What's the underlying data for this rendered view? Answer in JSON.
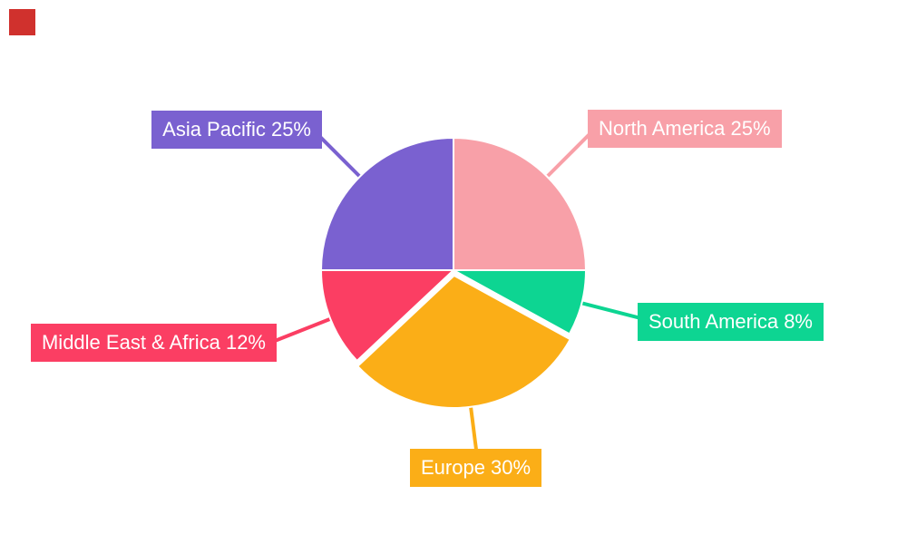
{
  "page": {
    "background_color": "#ffffff"
  },
  "marker": {
    "color": "#D0312D"
  },
  "chart_data": {
    "type": "pie",
    "title": "",
    "unit": "%",
    "direction": "clockwise",
    "start_angle_deg_from_top": 0,
    "label_style": "callout-boxes-with-leader-lines",
    "label_text_color": "#ffffff",
    "slice_border_color": "#ffffff",
    "slices": [
      {
        "label": "North America",
        "value": 25,
        "display": "North America 25%",
        "color": "#F8A0A8",
        "exploded": false
      },
      {
        "label": "South America",
        "value": 8,
        "display": "South America 8%",
        "color": "#0DD592",
        "exploded": false
      },
      {
        "label": "Europe",
        "value": 30,
        "display": "Europe 30%",
        "color": "#FBAE17",
        "exploded": true
      },
      {
        "label": "Middle East & Africa",
        "value": 12,
        "display": "Middle East & Africa 12%",
        "color": "#FB3E63",
        "exploded": false
      },
      {
        "label": "Asia Pacific",
        "value": 25,
        "display": "Asia Pacific 25%",
        "color": "#7A61D0",
        "exploded": false
      }
    ]
  }
}
